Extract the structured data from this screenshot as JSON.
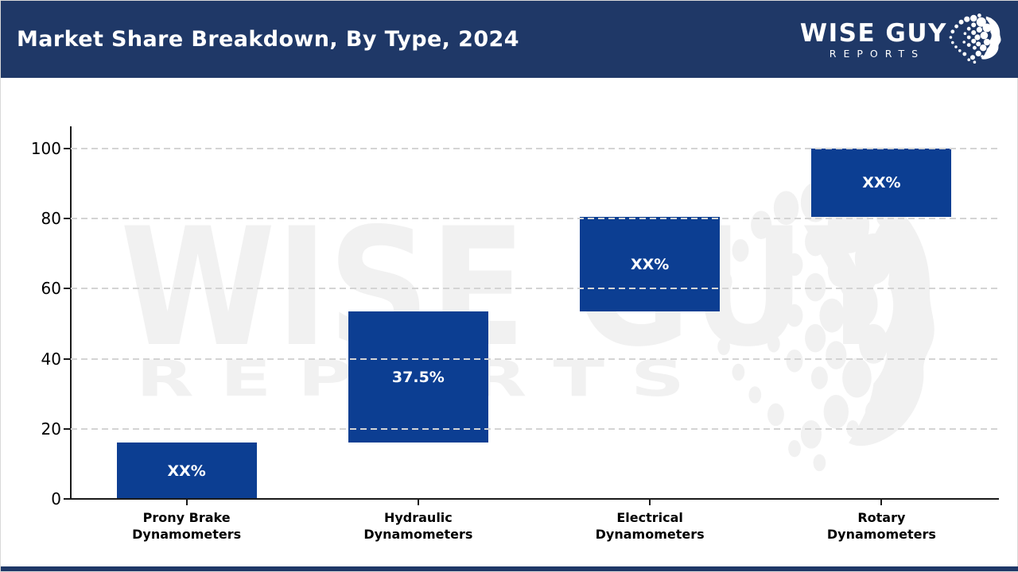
{
  "header": {
    "title": "Market Share Breakdown, By Type, 2024",
    "bg_color": "#1f3867",
    "logo_line1": "WISE GUY",
    "logo_line2": "REPORTS"
  },
  "watermark": {
    "line1": "WISE GUY",
    "line2": "R E P O R T S",
    "color": "#f1f1f1"
  },
  "chart_data": {
    "type": "bar",
    "subtype": "waterfall",
    "title": "Market Share Breakdown, By Type, 2024",
    "categories": [
      "Prony Brake Dynamometers",
      "Hydraulic Dynamometers",
      "Electrical Dynamometers",
      "Rotary Dynamometers"
    ],
    "bars": [
      {
        "category": "Prony Brake Dynamometers",
        "lines": [
          "Prony Brake",
          "Dynamometers"
        ],
        "start": 0,
        "end": 16,
        "label": "XX%"
      },
      {
        "category": "Hydraulic Dynamometers",
        "lines": [
          "Hydraulic",
          "Dynamometers"
        ],
        "start": 16,
        "end": 53.5,
        "label": "37.5%"
      },
      {
        "category": "Electrical Dynamometers",
        "lines": [
          "Electrical",
          "Dynamometers"
        ],
        "start": 53.5,
        "end": 80.5,
        "label": "XX%"
      },
      {
        "category": "Rotary Dynamometers",
        "lines": [
          "Rotary",
          "Dynamometers"
        ],
        "start": 80.5,
        "end": 100,
        "label": "XX%"
      }
    ],
    "ylim": [
      0,
      100
    ],
    "yticks": [
      0,
      20,
      40,
      60,
      80,
      100
    ],
    "xlabel": "",
    "ylabel": "",
    "grid": {
      "show": true,
      "style": "dashed",
      "color": "#d4d4d4",
      "orientation": "horizontal",
      "above_bars": true
    },
    "legend": null,
    "bar_color": "#0c3e92"
  }
}
